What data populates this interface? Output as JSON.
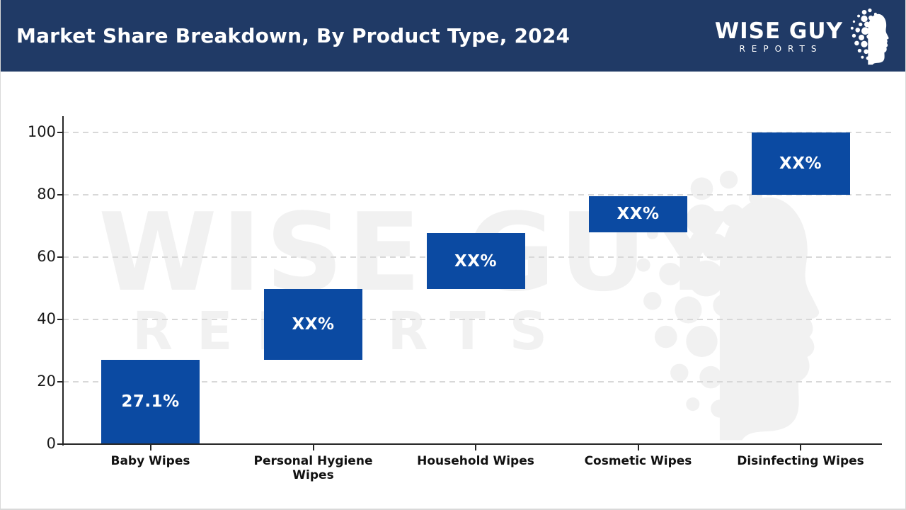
{
  "header": {
    "title": "Market Share Breakdown, By Product Type, 2024",
    "logo": {
      "line1": "WISE GUY",
      "line2": "REPORTS"
    }
  },
  "watermark": {
    "line1": "WISE GUY",
    "line2": "REPORTS"
  },
  "colors": {
    "header_bg": "#203A66",
    "bar": "#0B4AA2",
    "bar_label": "#ffffff",
    "grid": "#d8d8d8",
    "axis": "#262626",
    "watermark": "#f1f1f1"
  },
  "chart_data": {
    "type": "bar",
    "subtype": "waterfall",
    "title": "Market Share Breakdown, By Product Type, 2024",
    "xlabel": "",
    "ylabel": "",
    "ylim": [
      0,
      100
    ],
    "yticks": [
      0,
      20,
      40,
      60,
      80,
      100
    ],
    "grid": "horizontal-dashed",
    "legend": "none",
    "bars": [
      {
        "category": "Baby Wipes",
        "category_lines": [
          "Baby Wipes"
        ],
        "label": "27.1%",
        "start": 0,
        "end": 27.1
      },
      {
        "category": "Personal Hygiene Wipes",
        "category_lines": [
          "Personal Hygiene",
          "Wipes"
        ],
        "label": "XX%",
        "start": 27.1,
        "end": 49.7
      },
      {
        "category": "Household Wipes",
        "category_lines": [
          "Household Wipes"
        ],
        "label": "XX%",
        "start": 49.7,
        "end": 67.7
      },
      {
        "category": "Cosmetic Wipes",
        "category_lines": [
          "Cosmetic Wipes"
        ],
        "label": "XX%",
        "start": 68.0,
        "end": 79.5
      },
      {
        "category": "Disinfecting Wipes",
        "category_lines": [
          "Disinfecting Wipes"
        ],
        "label": "XX%",
        "start": 80.0,
        "end": 100
      }
    ]
  }
}
